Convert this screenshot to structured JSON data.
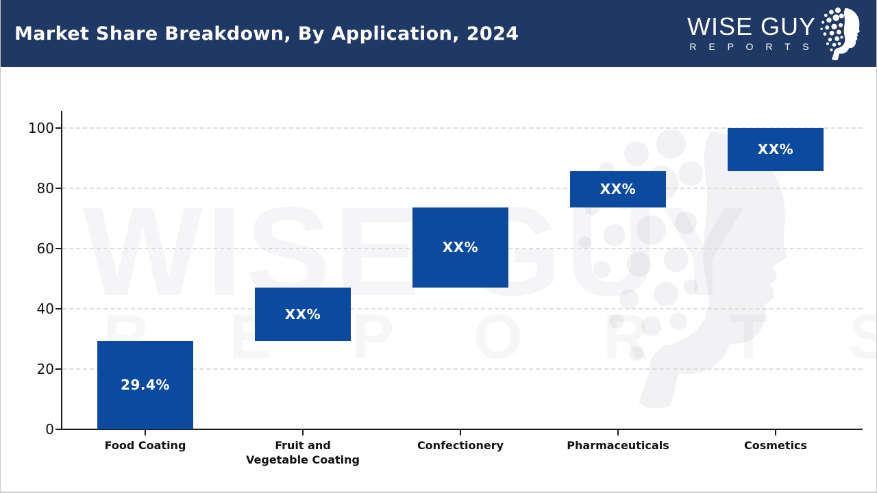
{
  "header": {
    "title": "Market Share Breakdown, By Application, 2024",
    "logo": {
      "name": "WISE GUY",
      "sub": "R E P O R T S"
    }
  },
  "watermark": {
    "line1": "WISE GUY",
    "line2": "R E P O R T S"
  },
  "colors": {
    "header_bg": "#1F3864",
    "bar": "#0B4A9E",
    "bar_label": "#FFFFFF",
    "grid": "#DCDCDC",
    "axis": "#1A1A1A",
    "page_bg": "#FFFFFF",
    "border": "#C8C8C8"
  },
  "chart_data": {
    "type": "bar",
    "subtype": "waterfall",
    "title": "Market Share Breakdown, By Application, 2024",
    "categories": [
      "Food Coating",
      "Fruit and\nVegetable Coating",
      "Confectionery",
      "Pharmaceuticals",
      "Cosmetics"
    ],
    "bars": [
      {
        "category": "Food Coating",
        "start": 0,
        "end": 29.4,
        "label": "29.4%"
      },
      {
        "category": "Fruit and\nVegetable Coating",
        "start": 29.4,
        "end": 47.1,
        "label": "XX%"
      },
      {
        "category": "Confectionery",
        "start": 47.1,
        "end": 73.7,
        "label": "XX%"
      },
      {
        "category": "Pharmaceuticals",
        "start": 73.7,
        "end": 85.7,
        "label": "XX%"
      },
      {
        "category": "Cosmetics",
        "start": 85.7,
        "end": 100,
        "label": "XX%"
      }
    ],
    "xlabel": "",
    "ylabel": "",
    "ylim": [
      0,
      100
    ],
    "yticks": [
      0,
      20,
      40,
      60,
      80,
      100
    ],
    "grid": "horizontal-dashed",
    "legend": "none"
  }
}
